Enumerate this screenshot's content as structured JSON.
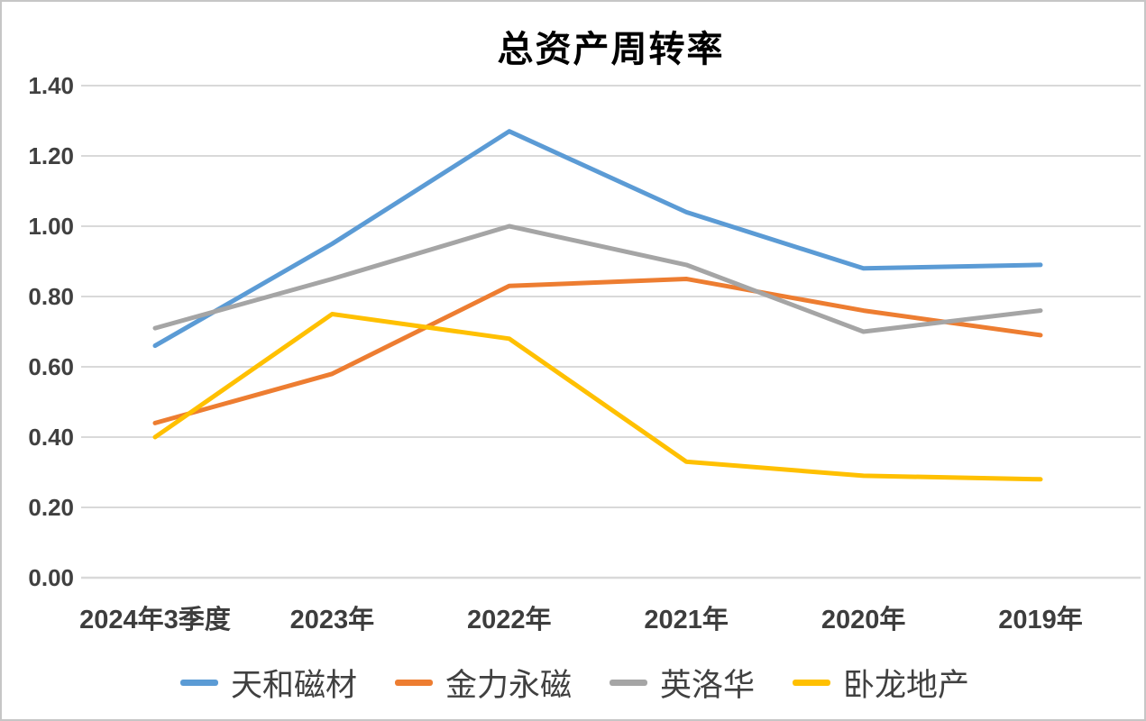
{
  "chart_data": {
    "type": "line",
    "title": "总资产周转率",
    "categories": [
      "2024年3季度",
      "2023年",
      "2022年",
      "2021年",
      "2020年",
      "2019年"
    ],
    "series": [
      {
        "name": "天和磁材",
        "color": "#5B9BD5",
        "values": [
          0.66,
          0.95,
          1.27,
          1.04,
          0.88,
          0.89
        ]
      },
      {
        "name": "金力永磁",
        "color": "#ED7D31",
        "values": [
          0.44,
          0.58,
          0.83,
          0.85,
          0.76,
          0.69
        ]
      },
      {
        "name": "英洛华",
        "color": "#A5A5A5",
        "values": [
          0.71,
          0.85,
          1.0,
          0.89,
          0.7,
          0.76
        ]
      },
      {
        "name": "卧龙地产",
        "color": "#FFC000",
        "values": [
          0.4,
          0.75,
          0.68,
          0.33,
          0.29,
          0.28
        ]
      }
    ],
    "y_ticks": [
      "1.40",
      "1.20",
      "1.00",
      "0.80",
      "0.60",
      "0.40",
      "0.20",
      "0.00"
    ],
    "ylim": [
      0.0,
      1.4
    ],
    "y_tick_step": 0.2,
    "grid": true,
    "gridline_color": "#D9D9D9",
    "tick_label_color": "#404040",
    "legend_position": "bottom"
  }
}
